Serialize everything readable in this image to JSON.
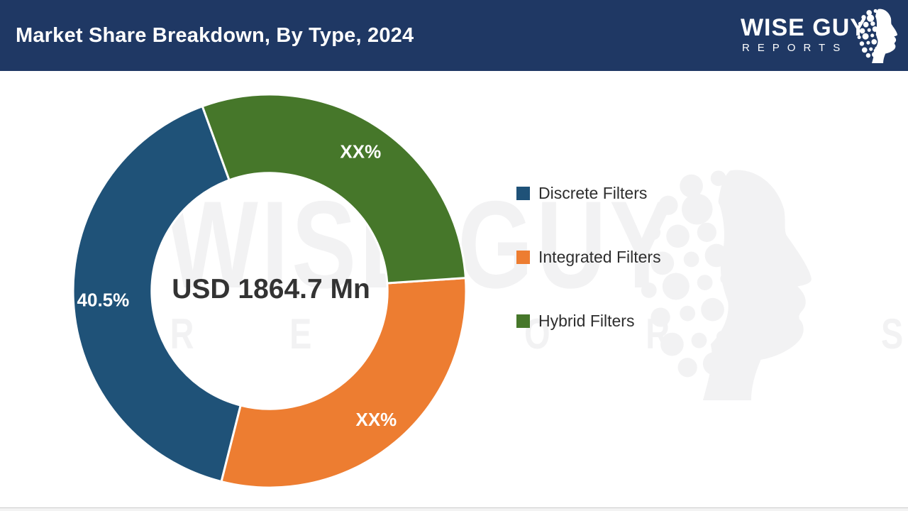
{
  "header": {
    "title": "Market Share Breakdown, By Type, 2024",
    "logo": {
      "wordmark": "WISE GUY",
      "subtitle": "REPORTS"
    }
  },
  "watermark": {
    "wordmark": "WISE GUY",
    "subtitle": "R E P O R T S"
  },
  "chart_data": {
    "type": "pie",
    "subtype": "donut",
    "title": "Market Share Breakdown, By Type, 2024",
    "center_label": "USD 1864.7 Mn",
    "categories": [
      "Discrete Filters",
      "Integrated Filters",
      "Hybrid Filters"
    ],
    "values": [
      40.5,
      30.0,
      29.5
    ],
    "value_labels": [
      "40.5%",
      "XX%",
      "XX%"
    ],
    "colors": [
      "#1F5278",
      "#ED7D31",
      "#46772A"
    ],
    "legend_position": "right",
    "start_angle_deg": 110,
    "direction": "counterclockwise",
    "inner_radius_ratio": 0.6,
    "label_radius_ratio": 0.848
  },
  "colors": {
    "header_bg": "#1F3864",
    "page_bg": "#FFFFFF",
    "watermark": "#F2F2F3",
    "center_label_text": "#333333",
    "legend_text": "#2E2E2E",
    "slice_label_text": "#FFFFFF"
  }
}
